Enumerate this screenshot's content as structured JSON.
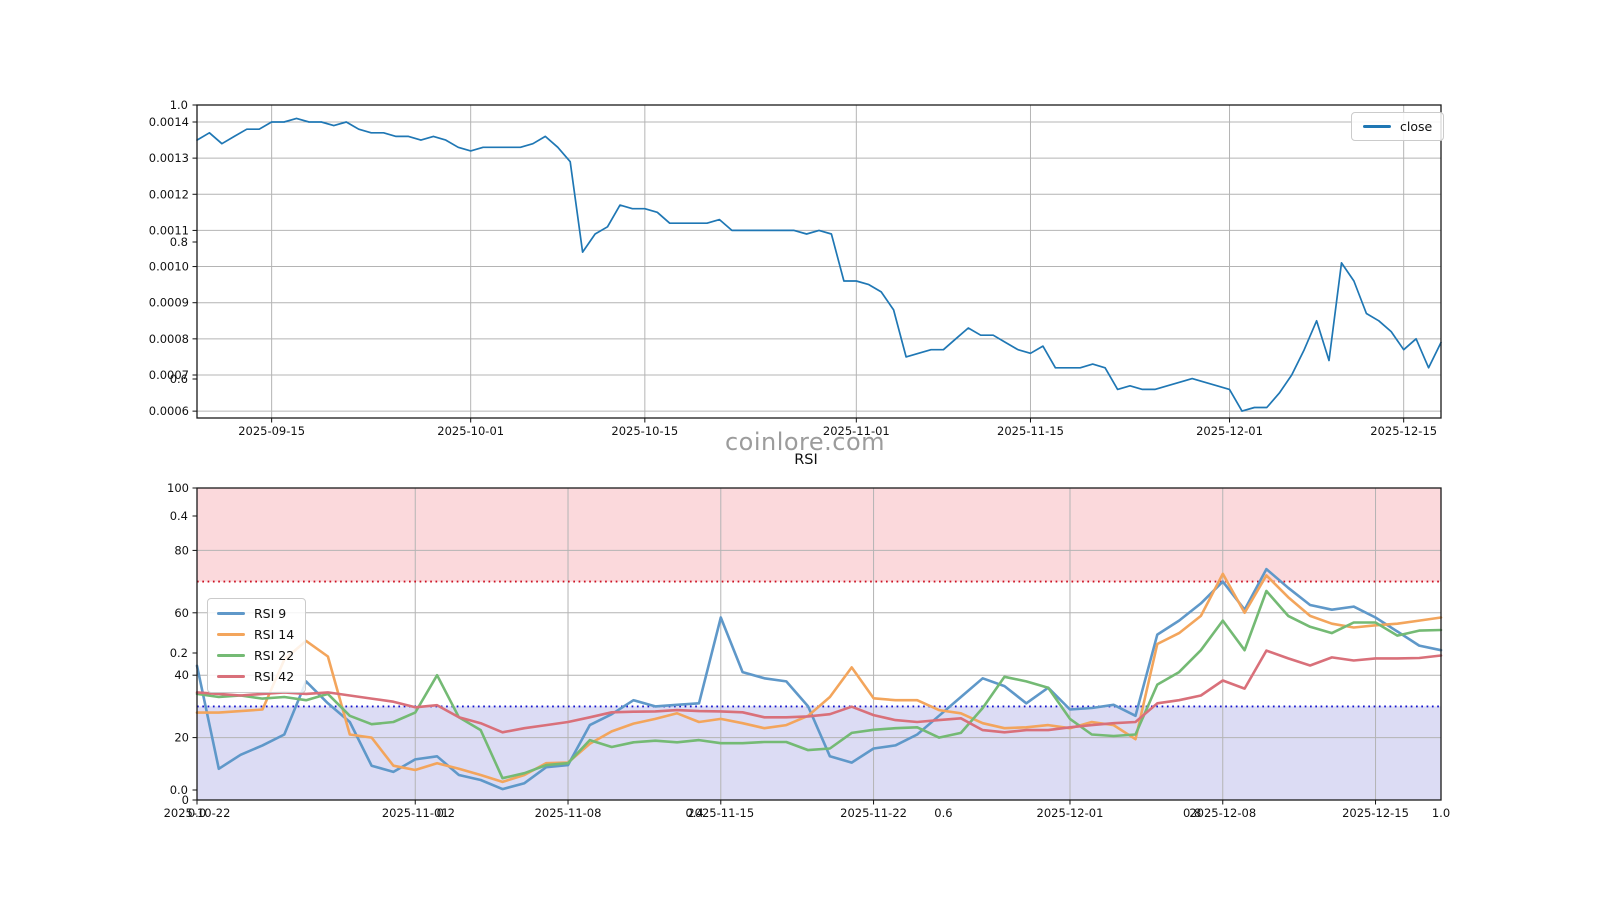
{
  "watermark": {
    "text": "coinlore.com"
  },
  "figure_axis": {
    "x_tick_labels": [
      "0.0",
      "0.2",
      "0.4",
      "0.6",
      "0.8",
      "1.0"
    ],
    "y_tick_labels": [
      "1.0",
      "0.8",
      "0.6",
      "0.4",
      "0.2",
      "0.0"
    ]
  },
  "chart_data": [
    {
      "name": "price",
      "type": "line",
      "title": "",
      "x_unit": "day",
      "x_start_date": "2025-09-09",
      "x_end_date": "2025-12-18",
      "x_tick_labels": [
        "2025-09-15",
        "2025-10-01",
        "2025-10-15",
        "2025-11-01",
        "2025-11-15",
        "2025-12-01",
        "2025-12-15"
      ],
      "x_tick_positions": [
        6,
        22,
        36,
        53,
        67,
        83,
        97
      ],
      "y_tick_labels": [
        "0.0006",
        "0.0007",
        "0.0008",
        "0.0009",
        "0.0010",
        "0.0011",
        "0.0012",
        "0.0013",
        "0.0014"
      ],
      "y_ticks": [
        0.0006,
        0.0007,
        0.0008,
        0.0009,
        0.001,
        0.0011,
        0.0012,
        0.0013,
        0.0014
      ],
      "ylim": [
        0.000581,
        0.001447
      ],
      "grid_color": "#b4b4b4",
      "legend_position": "upper right",
      "series": [
        {
          "name": "close",
          "color": "#1f77b4",
          "values": [
            0.00135,
            0.00137,
            0.00134,
            0.00136,
            0.00138,
            0.00138,
            0.0014,
            0.0014,
            0.00141,
            0.0014,
            0.0014,
            0.00139,
            0.0014,
            0.00138,
            0.00137,
            0.00137,
            0.00136,
            0.00136,
            0.00135,
            0.00136,
            0.00135,
            0.00133,
            0.00132,
            0.00133,
            0.00133,
            0.00133,
            0.00133,
            0.00134,
            0.00136,
            0.00133,
            0.00129,
            0.00104,
            0.00109,
            0.00111,
            0.00117,
            0.00116,
            0.00116,
            0.00115,
            0.00112,
            0.00112,
            0.00112,
            0.00112,
            0.00113,
            0.0011,
            0.0011,
            0.0011,
            0.0011,
            0.0011,
            0.0011,
            0.00109,
            0.0011,
            0.00109,
            0.00096,
            0.00096,
            0.00095,
            0.00093,
            0.00088,
            0.00075,
            0.00076,
            0.00077,
            0.00077,
            0.0008,
            0.00083,
            0.00081,
            0.00081,
            0.00079,
            0.00077,
            0.00076,
            0.00078,
            0.00072,
            0.00072,
            0.00072,
            0.00073,
            0.00072,
            0.00066,
            0.00067,
            0.00066,
            0.00066,
            0.00067,
            0.00068,
            0.00069,
            0.00068,
            0.00067,
            0.00066,
            0.0006,
            0.00061,
            0.00061,
            0.00065,
            0.0007,
            0.00077,
            0.00085,
            0.00074,
            0.00101,
            0.00096,
            0.00087,
            0.00085,
            0.00082,
            0.00077,
            0.0008,
            0.00072,
            0.00079
          ]
        }
      ]
    },
    {
      "name": "rsi",
      "type": "line",
      "title": "RSI",
      "x_unit": "day",
      "x_start_date": "2025-10-22",
      "x_end_date": "2025-12-18",
      "x_tick_labels": [
        "2025-10-22",
        "2025-11-01",
        "2025-11-08",
        "2025-11-15",
        "2025-11-22",
        "2025-12-01",
        "2025-12-08",
        "2025-12-15"
      ],
      "x_tick_positions": [
        0,
        10,
        17,
        24,
        31,
        40,
        47,
        54
      ],
      "y_tick_labels": [
        "0",
        "20",
        "40",
        "60",
        "80",
        "100"
      ],
      "y_ticks": [
        0,
        20,
        40,
        60,
        80,
        100
      ],
      "ylim": [
        0,
        100
      ],
      "grid_color": "#b4b4b4",
      "legend_position": "upper left",
      "bands": [
        {
          "name": "overbought-zone",
          "from": 70,
          "to": 100,
          "color": "#fbd9dc"
        },
        {
          "name": "oversold-zone",
          "from": 0,
          "to": 30,
          "color": "#dcdcf4"
        }
      ],
      "threshold_lines": [
        {
          "name": "overbought-line",
          "value": 70,
          "color": "#cc1122"
        },
        {
          "name": "oversold-line",
          "value": 30,
          "color": "#1414cc"
        }
      ],
      "series": [
        {
          "name": "RSI 9",
          "color": "#5f98c9",
          "values": [
            43,
            10,
            14.5,
            17.5,
            21,
            38,
            31,
            25,
            11,
            9,
            13,
            14,
            8,
            6.4,
            3.5,
            5.4,
            10.5,
            11.2,
            24,
            27.5,
            32,
            30,
            30.5,
            31,
            58.5,
            41,
            39,
            38,
            30,
            14,
            12,
            16.5,
            17.5,
            21,
            27,
            33,
            39,
            36.5,
            31,
            36,
            29,
            29.5,
            30.5,
            27,
            53,
            57.5,
            63,
            70,
            61,
            74,
            68,
            62.5,
            61,
            62,
            58.5,
            54,
            49.5,
            48
          ]
        },
        {
          "name": "RSI 14",
          "color": "#f3a55c",
          "values": [
            28,
            28,
            28.5,
            29,
            45,
            51,
            46,
            21,
            20,
            11,
            9.6,
            11.8,
            10,
            8,
            5.8,
            8,
            11.8,
            12,
            18,
            22,
            24.5,
            26,
            27.8,
            25,
            26,
            24.6,
            23,
            24,
            27,
            33,
            42.5,
            32.6,
            32,
            32,
            28.8,
            27.8,
            24.6,
            23,
            23.3,
            24,
            23,
            25,
            24,
            19.5,
            50,
            53.5,
            59,
            72.5,
            60,
            72,
            65,
            59,
            56.5,
            55.3,
            56,
            56.5,
            57.5,
            58.5
          ]
        },
        {
          "name": "RSI 22",
          "color": "#74ba74",
          "values": [
            34,
            33,
            33.5,
            32.5,
            33,
            32,
            34,
            27,
            24.3,
            25,
            28,
            40,
            26.5,
            22.4,
            7,
            8.6,
            11.2,
            11.8,
            19.2,
            17,
            18.5,
            19,
            18.5,
            19.2,
            18.2,
            18.2,
            18.6,
            18.6,
            16,
            16.5,
            21.5,
            22.5,
            23,
            23.3,
            20,
            21.5,
            29.5,
            39.5,
            38,
            36,
            26,
            21,
            20.5,
            21,
            37,
            41,
            48,
            57.5,
            48,
            67,
            59,
            55.5,
            53.5,
            56.9,
            56.9,
            52.7,
            54.3,
            54.5
          ]
        },
        {
          "name": "RSI 42",
          "color": "#d9707a",
          "values": [
            34.5,
            34,
            33.5,
            34,
            34.5,
            34,
            34.5,
            33.5,
            32.5,
            31.5,
            29.7,
            30.4,
            26.5,
            24.6,
            21.7,
            23,
            24,
            25,
            26.5,
            28.1,
            28.3,
            28.4,
            28.8,
            28.5,
            28.4,
            28.1,
            26.5,
            26.5,
            26.8,
            27.5,
            29.9,
            27.2,
            25.6,
            25,
            25.6,
            26.2,
            22.4,
            21.7,
            22.4,
            22.4,
            23.3,
            24,
            24.6,
            25,
            31,
            32,
            33.5,
            38.3,
            35.7,
            47.9,
            45.4,
            43.1,
            45.7,
            44.7,
            45.4,
            45.4,
            45.5,
            46.3
          ]
        }
      ]
    }
  ]
}
